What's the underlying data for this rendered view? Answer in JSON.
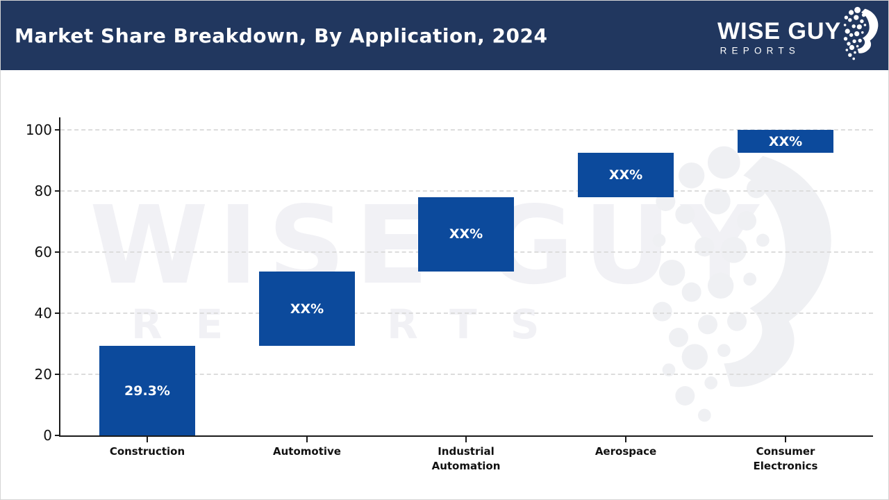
{
  "header": {
    "title": "Market Share Breakdown, By Application, 2024",
    "bg_color": "#21375f",
    "logo": {
      "line1": "WISE GUY",
      "line2": "REPORTS"
    }
  },
  "watermark": {
    "line1": "WISE GUY",
    "line2": "REPORTS"
  },
  "chart_data": {
    "type": "bar",
    "subtype": "waterfall-floating-bars",
    "title": "Market Share Breakdown, By Application, 2024",
    "xlabel": "",
    "ylabel": "",
    "ylim": [
      0,
      100
    ],
    "yticks": [
      0,
      20,
      40,
      60,
      80,
      100
    ],
    "grid": "horizontal-dashed",
    "bar_color": "#0c4a9c",
    "label_color": "#ffffff",
    "categories": [
      "Construction",
      "Automotive",
      "Industrial Automation",
      "Aerospace",
      "Consumer Electronics"
    ],
    "segments": [
      {
        "category": "Construction",
        "label_lines": [
          "Construction"
        ],
        "start": 0,
        "end": 29.3,
        "value_label": "29.3%"
      },
      {
        "category": "Automotive",
        "label_lines": [
          "Automotive"
        ],
        "start": 29.3,
        "end": 53.6,
        "value_label": "XX%"
      },
      {
        "category": "Industrial Automation",
        "label_lines": [
          "Industrial",
          "Automation"
        ],
        "start": 53.6,
        "end": 78.0,
        "value_label": "XX%"
      },
      {
        "category": "Aerospace",
        "label_lines": [
          "Aerospace"
        ],
        "start": 78.0,
        "end": 92.5,
        "value_label": "XX%"
      },
      {
        "category": "Consumer Electronics",
        "label_lines": [
          "Consumer",
          "Electronics"
        ],
        "start": 92.5,
        "end": 100.0,
        "value_label": "XX%"
      }
    ]
  }
}
